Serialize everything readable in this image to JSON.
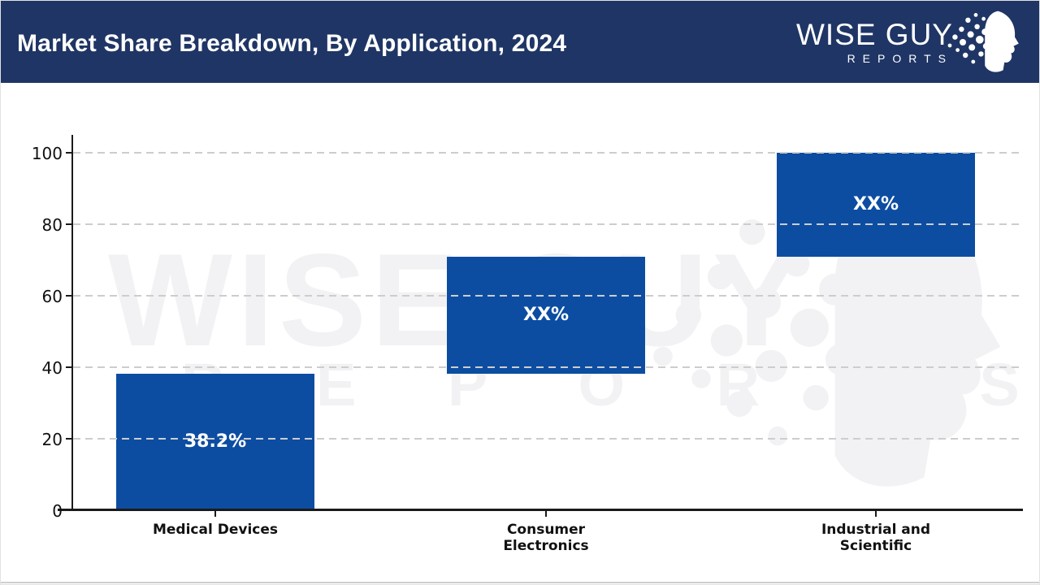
{
  "header": {
    "title": "Market Share Breakdown, By Application, 2024",
    "bg_color": "#1f3565",
    "logo": {
      "line1": "WISE GUY",
      "line2": "REPORTS"
    }
  },
  "watermark": {
    "line1": "WISE GUY",
    "line2": "R E P O R T S",
    "color": "#f2f2f4"
  },
  "chart_data": {
    "type": "bar",
    "variant": "waterfall",
    "title": "Market Share Breakdown, By Application, 2024",
    "categories": [
      "Medical Devices",
      "Consumer Electronics",
      "Industrial and Scientific"
    ],
    "category_label_lines": [
      [
        "Medical Devices"
      ],
      [
        "Consumer",
        "Electronics"
      ],
      [
        "Industrial and",
        "Scientific"
      ]
    ],
    "segments": [
      {
        "category": "Medical Devices",
        "start": 0,
        "end": 38.2,
        "label": "38.2%"
      },
      {
        "category": "Consumer Electronics",
        "start": 38.2,
        "end": 71,
        "label": "XX%"
      },
      {
        "category": "Industrial and Scientific",
        "start": 71,
        "end": 100,
        "label": "XX%"
      }
    ],
    "yticks": [
      0,
      20,
      40,
      60,
      80,
      100
    ],
    "ylim": [
      0,
      105
    ],
    "xlabel": "",
    "ylabel": "",
    "grid": "horizontal-dashed",
    "legend": "none",
    "bar_color": "#0c4da2",
    "bar_label_color": "#ffffff",
    "axis_color": "#1a1a1a",
    "gridline_color": "#cdcdcd"
  }
}
